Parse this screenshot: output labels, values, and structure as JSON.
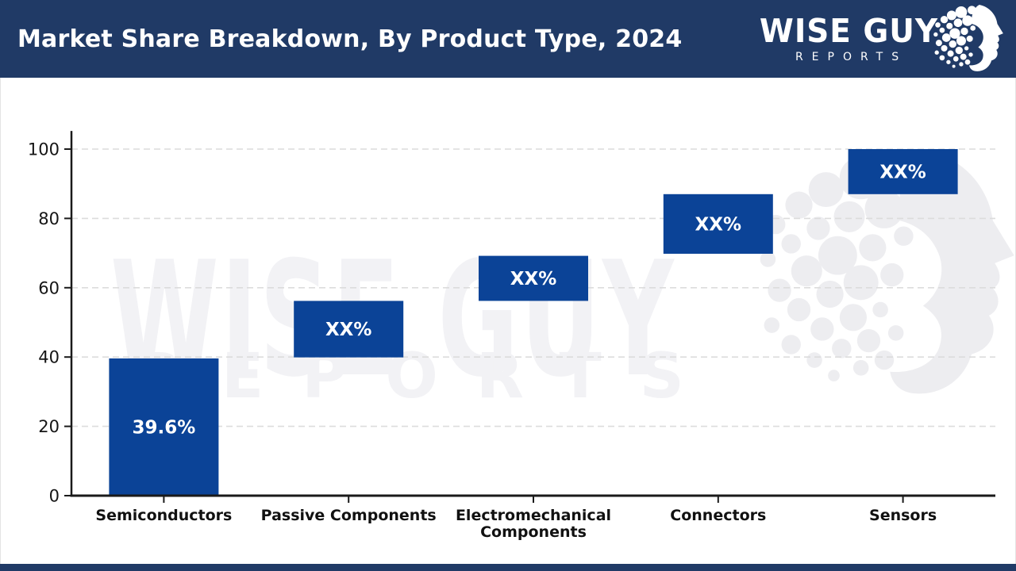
{
  "header": {
    "title": "Market Share Breakdown, By Product Type, 2024",
    "logo": {
      "line1": "WISE GUY",
      "line2": "REPORTS"
    }
  },
  "watermark": {
    "line1": "WISE GUY",
    "line2": "REPORTS"
  },
  "colors": {
    "header_bg": "#203a66",
    "footer_bg": "#203a66",
    "bar": "#0b4397",
    "bar_label": "#ffffff",
    "grid": "#dcdcdc",
    "axis": "#1a1a1a",
    "tick_label": "#151515",
    "category_label": "#111111",
    "watermark": "#f2f2f5",
    "watermark_head": "#ededf0"
  },
  "chart_data": {
    "type": "bar",
    "subtype": "waterfall",
    "title": "Market Share Breakdown, By Product Type, 2024",
    "categories": [
      "Semiconductors",
      "Passive Components",
      "Electromechanical Components",
      "Connectors",
      "Sensors"
    ],
    "segments": [
      {
        "category": "Semiconductors",
        "start": 0,
        "end": 39.6,
        "label": "39.6%"
      },
      {
        "category": "Passive Components",
        "start": 39.9,
        "end": 56.2,
        "label": "XX%"
      },
      {
        "category": "Electromechanical Components",
        "start": 56.2,
        "end": 69.2,
        "label": "XX%"
      },
      {
        "category": "Connectors",
        "start": 69.8,
        "end": 87.0,
        "label": "XX%"
      },
      {
        "category": "Sensors",
        "start": 87.0,
        "end": 100.0,
        "label": "XX%"
      }
    ],
    "y_ticks": [
      0,
      20,
      40,
      60,
      80,
      100
    ],
    "ylim": [
      0,
      105
    ],
    "xlabel": "",
    "ylabel": "",
    "grid": "horizontal-dashed",
    "legend": "none"
  }
}
